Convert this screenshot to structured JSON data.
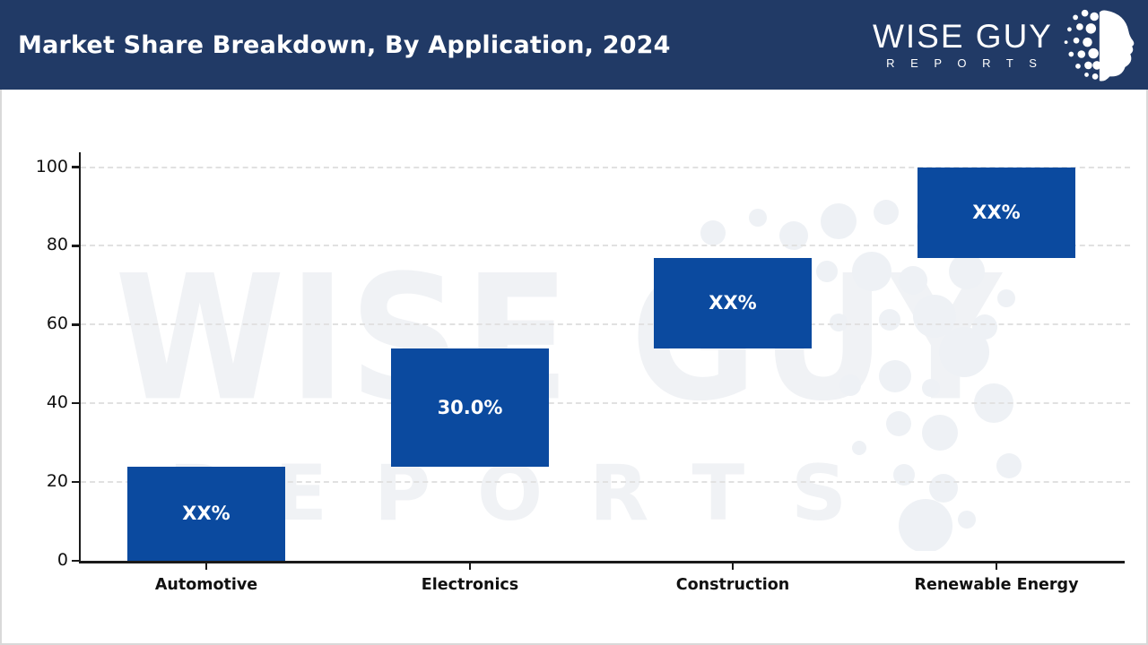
{
  "header": {
    "title": "Market Share Breakdown, By Application, 2024",
    "logo": {
      "line1": "WISE GUY",
      "line2": "REPORTS"
    }
  },
  "watermark": {
    "line1": "WISE GUY",
    "line2": "REPORTS"
  },
  "chart_data": {
    "type": "bar",
    "subtype": "waterfall-floating-bars",
    "title": "Market Share Breakdown, By Application, 2024",
    "categories": [
      "Automotive",
      "Electronics",
      "Construction",
      "Renewable Energy"
    ],
    "segments": [
      {
        "category": "Automotive",
        "start": 0,
        "end": 24,
        "value": 24,
        "label": "XX%"
      },
      {
        "category": "Electronics",
        "start": 24,
        "end": 54,
        "value": 30,
        "label": "30.0%"
      },
      {
        "category": "Construction",
        "start": 54,
        "end": 77,
        "value": 23,
        "label": "XX%"
      },
      {
        "category": "Renewable Energy",
        "start": 77,
        "end": 100,
        "value": 23,
        "label": "XX%"
      }
    ],
    "yticks": [
      "0",
      "20",
      "40",
      "60",
      "80",
      "100"
    ],
    "ylim": [
      0,
      104
    ],
    "xlabel": "",
    "ylabel": "",
    "legend": "none",
    "grid": "horizontal-dashed"
  },
  "colors": {
    "header_bg": "#213A66",
    "bar": "#0B4A9F",
    "grid": "#e1e1e1",
    "axis": "#1a1a1a",
    "watermark": "#f0f2f5",
    "text_on_bar": "#ffffff"
  }
}
